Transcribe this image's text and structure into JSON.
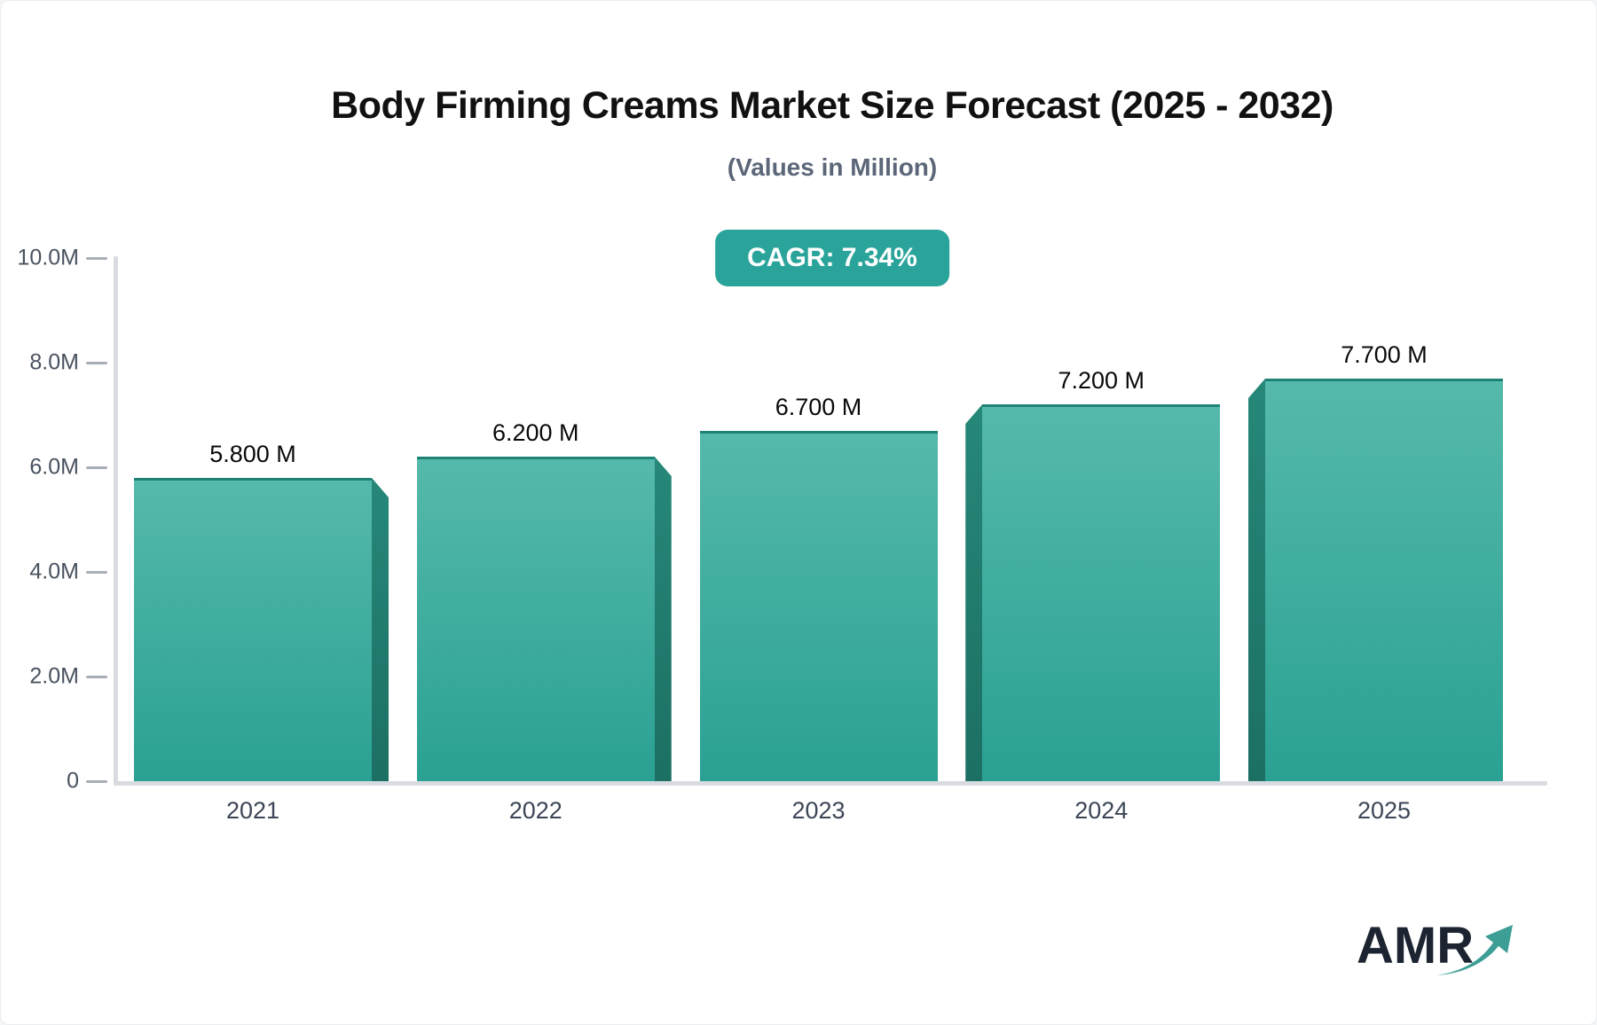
{
  "chart_data": {
    "type": "bar",
    "title": "Body Firming Creams Market Size Forecast (2025 - 2032)",
    "subtitle": "(Values in Million)",
    "badge": "CAGR: 7.34%",
    "categories": [
      "2021",
      "2022",
      "2023",
      "2024",
      "2025"
    ],
    "values": [
      5.8,
      6.2,
      6.7,
      7.2,
      7.7
    ],
    "bar_labels": [
      "5.800 M",
      "6.200 M",
      "6.700 M",
      "7.200 M",
      "7.700 M"
    ],
    "y_ticks": {
      "labels": [
        "10.0M",
        "8.0M",
        "6.0M",
        "4.0M",
        "2.0M",
        "0"
      ],
      "values": [
        10,
        8,
        6,
        4,
        2,
        0
      ]
    },
    "ylim": [
      0,
      10
    ],
    "grid": false,
    "legend": false,
    "colors": {
      "bar_face_top": "#55B9AB",
      "bar_face_bottom": "#2AA193",
      "bar_face_edge": "#1F8276",
      "bar_side_top": "#268879",
      "bar_side_bottom": "#1C6F63",
      "badge_bg": "#2AA49B",
      "badge_text": "#FFFFFF",
      "axis_line": "#D8DBE0",
      "tick_dash": "#A8AEB8",
      "title_text": "#111111",
      "subtitle_text": "#5B6678",
      "axis_label": "#49525F",
      "category_label": "#3C4656",
      "value_label": "#0A0A0A",
      "logo_text": "#1B2430",
      "logo_arrow": "#3D9E95"
    },
    "logo": "AMR"
  }
}
